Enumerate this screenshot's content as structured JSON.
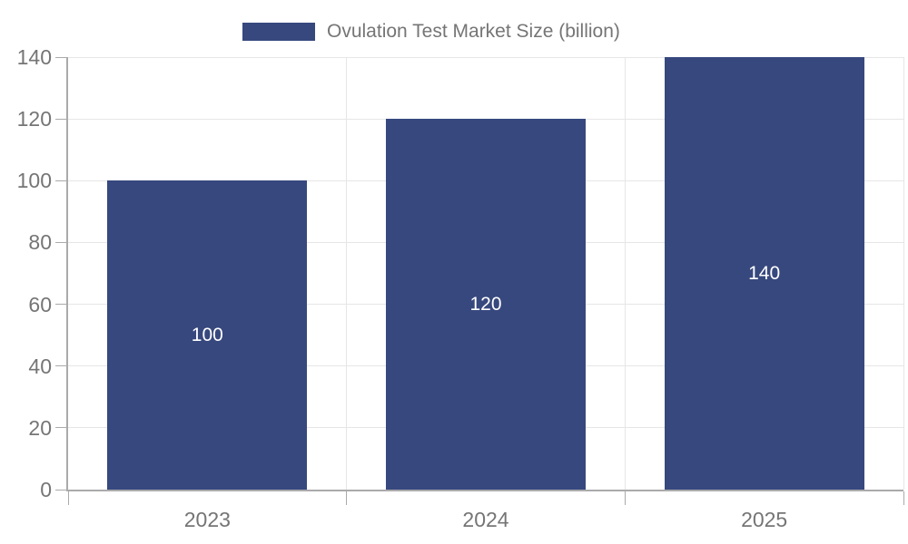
{
  "chart_data": {
    "type": "bar",
    "title": "",
    "legend": {
      "label": "Ovulation Test Market Size (billion)",
      "position": "top-center"
    },
    "categories": [
      "2023",
      "2024",
      "2025"
    ],
    "series": [
      {
        "name": "Ovulation Test Market Size (billion)",
        "values": [
          100,
          120,
          140
        ]
      }
    ],
    "bar_value_labels": [
      "100",
      "120",
      "140"
    ],
    "xlabel": "",
    "ylabel": "",
    "ylim": [
      0,
      140
    ],
    "yticks": [
      0,
      20,
      40,
      60,
      80,
      100,
      120,
      140
    ],
    "grid": true,
    "colors": {
      "bar": "#37487E",
      "grid": "#e6e6e6",
      "axis": "#aaaaaa",
      "tick_text": "#757575",
      "bar_label_text": "#ffffff",
      "background": "#ffffff"
    }
  }
}
